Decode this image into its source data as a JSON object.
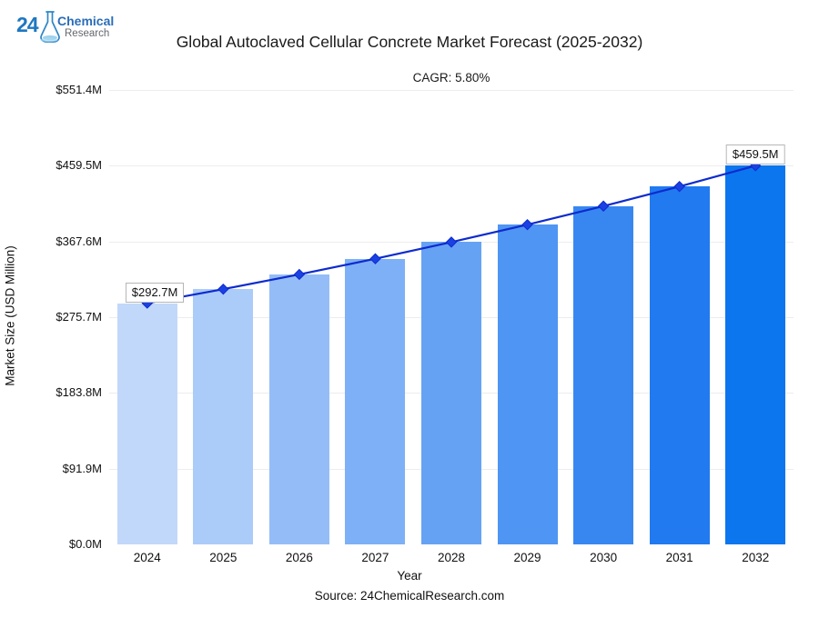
{
  "logo": {
    "number": "24",
    "line1": "Chemical",
    "line2": "Research"
  },
  "header": {
    "title": "Global Autoclaved Cellular Concrete Market Forecast (2025-2032)",
    "subtitle": "CAGR: 5.80%"
  },
  "footer": {
    "source": "Source: 24ChemicalResearch.com"
  },
  "chart_data": {
    "type": "bar",
    "overlay": "line",
    "title": "Global Autoclaved Cellular Concrete Market Forecast (2025-2032)",
    "subtitle": "CAGR: 5.80%",
    "cagr_percent": 5.8,
    "categories": [
      "2024",
      "2025",
      "2026",
      "2027",
      "2028",
      "2029",
      "2030",
      "2031",
      "2032"
    ],
    "values": [
      292.7,
      309.7,
      327.6,
      346.6,
      366.8,
      388.0,
      410.5,
      434.3,
      459.5
    ],
    "xlabel": "Year",
    "ylabel": "Market Size (USD Million)",
    "ylim": [
      0,
      551.4
    ],
    "yticks": [
      {
        "value": 0.0,
        "label": "$0.0M"
      },
      {
        "value": 91.9,
        "label": "$91.9M"
      },
      {
        "value": 183.8,
        "label": "$183.8M"
      },
      {
        "value": 275.7,
        "label": "$275.7M"
      },
      {
        "value": 367.6,
        "label": "$367.6M"
      },
      {
        "value": 459.5,
        "label": "$459.5M"
      },
      {
        "value": 551.4,
        "label": "$551.4M"
      }
    ],
    "annotations": [
      {
        "index": 0,
        "text": "$292.7M",
        "align": "left"
      },
      {
        "index": 8,
        "text": "$459.5M",
        "align": "center"
      }
    ],
    "grid": "horizontal",
    "legend": "none",
    "colors": {
      "bars": [
        "#c2d8fa",
        "#abcbf9",
        "#94bdf7",
        "#7db0f6",
        "#66a2f4",
        "#4f95f3",
        "#3887f1",
        "#217af0",
        "#0c76ef"
      ],
      "line": "#0d2bce",
      "marker": "#1b41e2",
      "grid": "#ededed",
      "annotation_border": "#b6b6b6"
    }
  }
}
